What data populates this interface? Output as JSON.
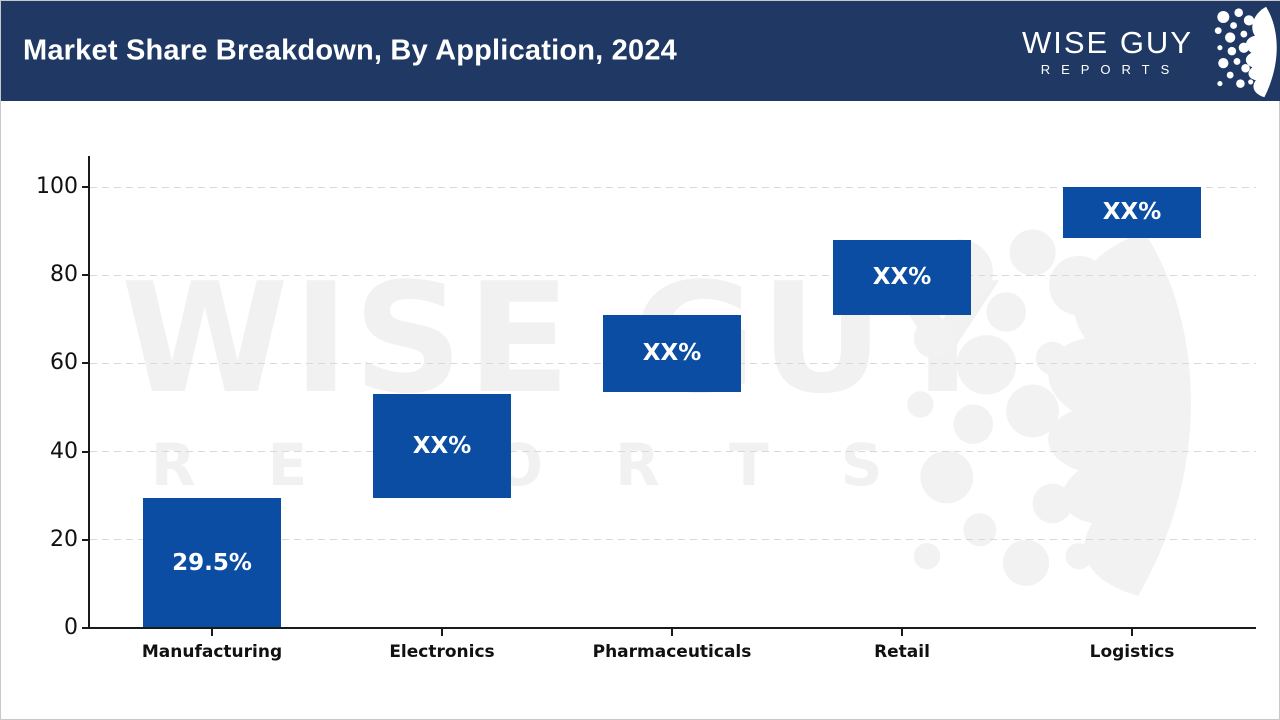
{
  "header": {
    "title": "Market Share Breakdown, By Application, 2024",
    "bg_color": "#1f3864",
    "logo": {
      "line1": "WISE GUY",
      "line2": "REPORTS"
    }
  },
  "watermark": {
    "line1": "WISE GUY",
    "line2": "REPORTS",
    "color": "#f1f1f1"
  },
  "chart_data": {
    "type": "bar",
    "subtype": "waterfall",
    "title": "Market Share Breakdown, By Application, 2024",
    "categories": [
      "Manufacturing",
      "Electronics",
      "Pharmaceuticals",
      "Retail",
      "Logistics"
    ],
    "segments": [
      {
        "category": "Manufacturing",
        "start": 0,
        "end": 29.5,
        "label": "29.5%"
      },
      {
        "category": "Electronics",
        "start": 29.5,
        "end": 53,
        "label": "XX%"
      },
      {
        "category": "Pharmaceuticals",
        "start": 53.5,
        "end": 71,
        "label": "XX%"
      },
      {
        "category": "Retail",
        "start": 71,
        "end": 88,
        "label": "XX%"
      },
      {
        "category": "Logistics",
        "start": 88.5,
        "end": 100,
        "label": "XX%"
      }
    ],
    "yticks": [
      0,
      20,
      40,
      60,
      80,
      100
    ],
    "ylim": [
      0,
      100
    ],
    "xlabel": "",
    "ylabel": "",
    "grid": "horizontal-dashed",
    "legend": "none",
    "bar_color": "#0b4da2",
    "bar_label_color": "#ffffff",
    "grid_color": "#d9d9d9",
    "axis_color": "#1a1a1a"
  }
}
